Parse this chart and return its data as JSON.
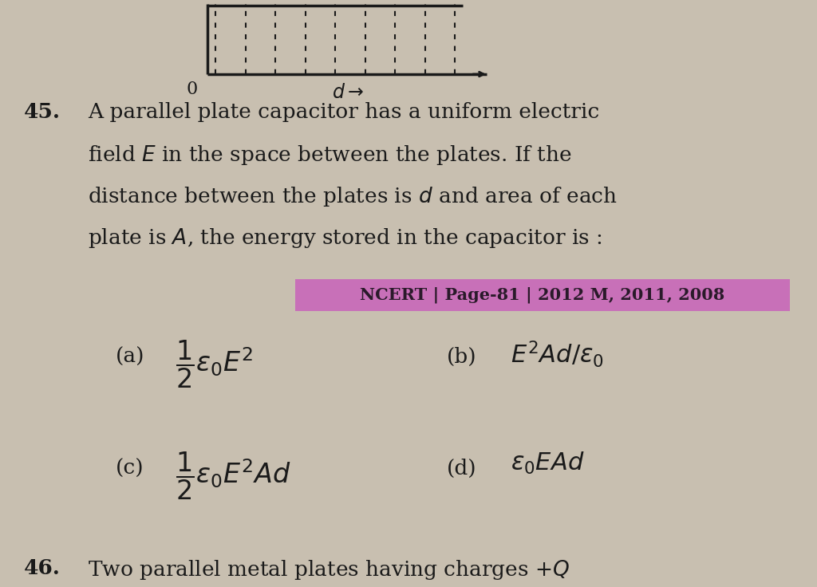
{
  "background_color": "#c8bfb0",
  "question_number": "45.",
  "question_text_lines": [
    "A parallel plate capacitor has a uniform electric",
    "field $E$ in the space between the plates. If the",
    "distance between the plates is $d$ and area of each",
    "plate is $A$, the energy stored in the capacitor is :"
  ],
  "ncert_label": "NCERT | Page-81 | 2012 M, 2011, 2008",
  "ncert_bg": "#c870b8",
  "ncert_text_color": "#2a1a2a",
  "text_color": "#1a1a1a",
  "q_number_color": "#1a1a1a",
  "font_size_question": 19,
  "font_size_options": 20,
  "font_size_ncert": 15
}
